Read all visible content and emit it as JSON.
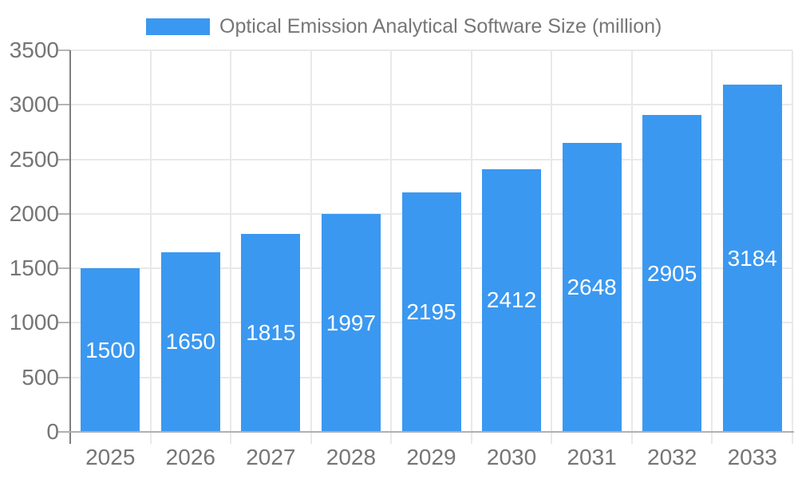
{
  "chart_data": {
    "type": "bar",
    "title": "Optical Emission Analytical Software Size (million)",
    "categories": [
      "2025",
      "2026",
      "2027",
      "2028",
      "2029",
      "2030",
      "2031",
      "2032",
      "2033"
    ],
    "values": [
      1500,
      1650,
      1815,
      1997,
      2195,
      2412,
      2648,
      2905,
      3184
    ],
    "xlabel": "",
    "ylabel": "",
    "ylim": [
      0,
      3500
    ],
    "y_ticks": [
      0,
      500,
      1000,
      1500,
      2000,
      2500,
      3000,
      3500
    ],
    "grid": true,
    "legend_position": "top",
    "value_label_position": "inside-center",
    "colors": {
      "bar_color": "#3B98F0",
      "grid_color": "#E9E9E9",
      "axis_y_color": "#7E7E7E",
      "axis_x_color": "#B0B0B0",
      "tick_color": "#B5B5B5",
      "axis_text_color": "#757575",
      "title_color": "#767676",
      "value_label_color": "#FFFFFF",
      "bg_color": "#FFFFFF"
    }
  }
}
